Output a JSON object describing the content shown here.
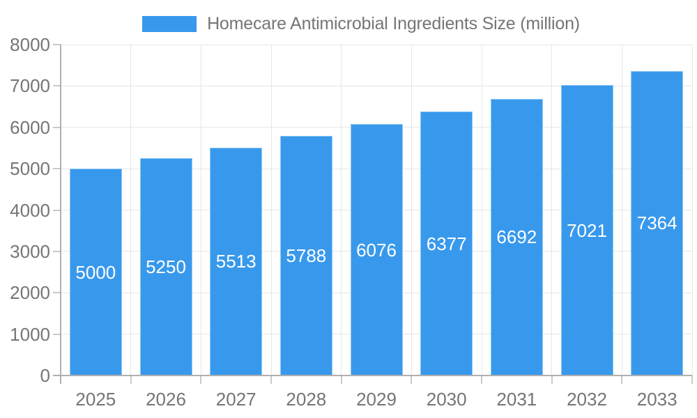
{
  "chart_data": {
    "type": "bar",
    "title": "Homecare Antimicrobial Ingredients Size (million)",
    "categories": [
      "2025",
      "2026",
      "2027",
      "2028",
      "2029",
      "2030",
      "2031",
      "2032",
      "2033"
    ],
    "values": [
      5000,
      5250,
      5513,
      5788,
      6076,
      6377,
      6692,
      7021,
      7364
    ],
    "bar_labels": [
      "5000",
      "5250",
      "5513",
      "5788",
      "6076",
      "6377",
      "6692",
      "7021",
      "7364"
    ],
    "xlabel": "",
    "ylabel": "",
    "ylim": [
      0,
      8000
    ],
    "ytick_step": 1000,
    "ytick_labels": [
      "0",
      "1000",
      "2000",
      "3000",
      "4000",
      "5000",
      "6000",
      "7000",
      "8000"
    ],
    "grid": true,
    "legend_position": "top"
  },
  "legend": {
    "series_label": "Homecare Antimicrobial Ingredients Size (million)"
  },
  "colors": {
    "bar": "#3899EC",
    "grid": "#E6E6E6",
    "axis": "#B0B0B0",
    "tick_mark": "#C9C9C9",
    "tick_text": "#757575",
    "title_text": "#757575",
    "bar_value_text": "#FFFFFF",
    "background": "#FFFFFF"
  }
}
